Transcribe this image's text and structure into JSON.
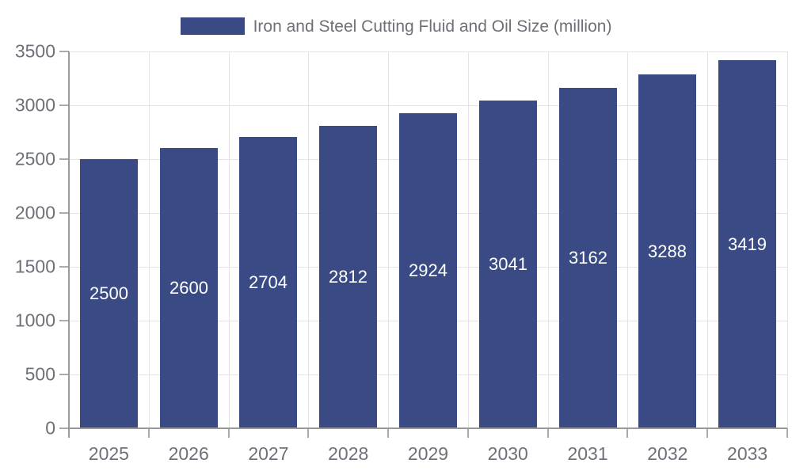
{
  "chart_data": {
    "type": "bar",
    "title": "Iron and Steel Cutting Fluid and Oil Size (million)",
    "categories": [
      "2025",
      "2026",
      "2027",
      "2028",
      "2029",
      "2030",
      "2031",
      "2032",
      "2033"
    ],
    "series": [
      {
        "name": "Iron and Steel Cutting Fluid and Oil Size (million)",
        "values": [
          2500,
          2600,
          2704,
          2812,
          2924,
          3041,
          3162,
          3288,
          3419
        ]
      }
    ],
    "value_labels_shown_inside_bars": true,
    "xlabel": "",
    "ylabel": "",
    "ylim": [
      0,
      3500
    ],
    "yticks": [
      0,
      500,
      1000,
      1500,
      2000,
      2500,
      3000,
      3500
    ],
    "grid": true,
    "legend_position": "top-center"
  },
  "colors": {
    "bar": "#3A4A84",
    "gridline": "#E3E3E8",
    "axis": "#999999",
    "tick": "#AAAAAA",
    "text": "#6E7079",
    "bar_label": "#FFFFFF",
    "background": "#FFFFFF"
  }
}
